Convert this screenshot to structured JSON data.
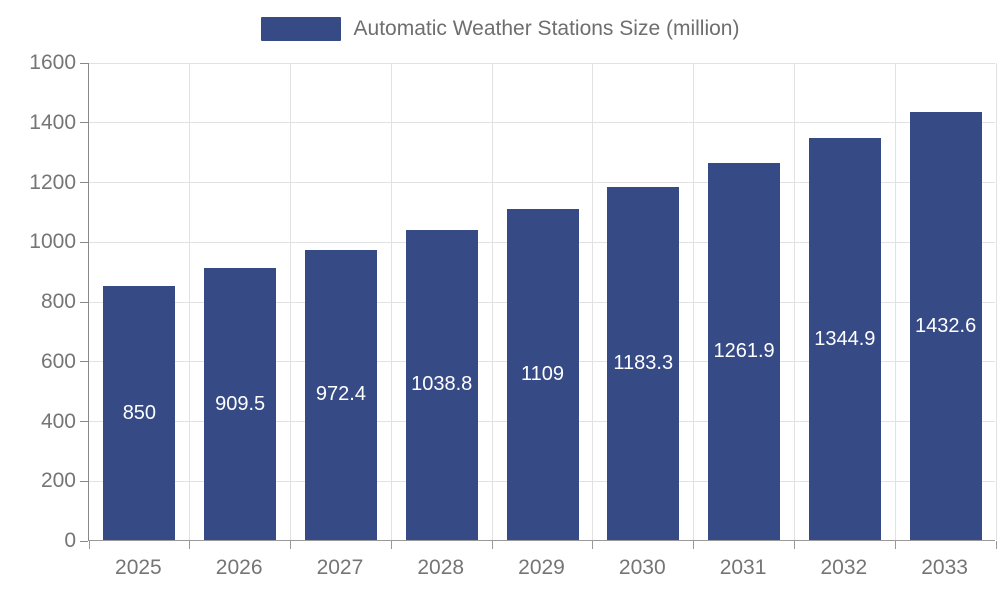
{
  "legend": {
    "label": "Automatic Weather Stations Size (million)",
    "swatch_color": "#364a85"
  },
  "chart_data": {
    "type": "bar",
    "title": "",
    "xlabel": "",
    "ylabel": "",
    "categories": [
      "2025",
      "2026",
      "2027",
      "2028",
      "2029",
      "2030",
      "2031",
      "2032",
      "2033"
    ],
    "series": [
      {
        "name": "Automatic Weather Stations Size (million)",
        "values": [
          850,
          909.5,
          972.4,
          1038.8,
          1109,
          1183.3,
          1261.9,
          1344.9,
          1432.6
        ]
      }
    ],
    "ylim": [
      0,
      1600
    ],
    "ytick_step": 200,
    "ytick_labels": [
      "0",
      "200",
      "400",
      "600",
      "800",
      "1000",
      "1200",
      "1400",
      "1600"
    ],
    "grid": true,
    "legend_position": "top",
    "value_labels": "inside-center",
    "colors": {
      "bar": "#364a85",
      "value_label": "#ffffff",
      "axis_text": "#757575",
      "legend_text": "#6e6e6e",
      "gridline": "#e2e2e2",
      "y_axis_line": "#888888",
      "x_axis_line": "#999999"
    }
  }
}
